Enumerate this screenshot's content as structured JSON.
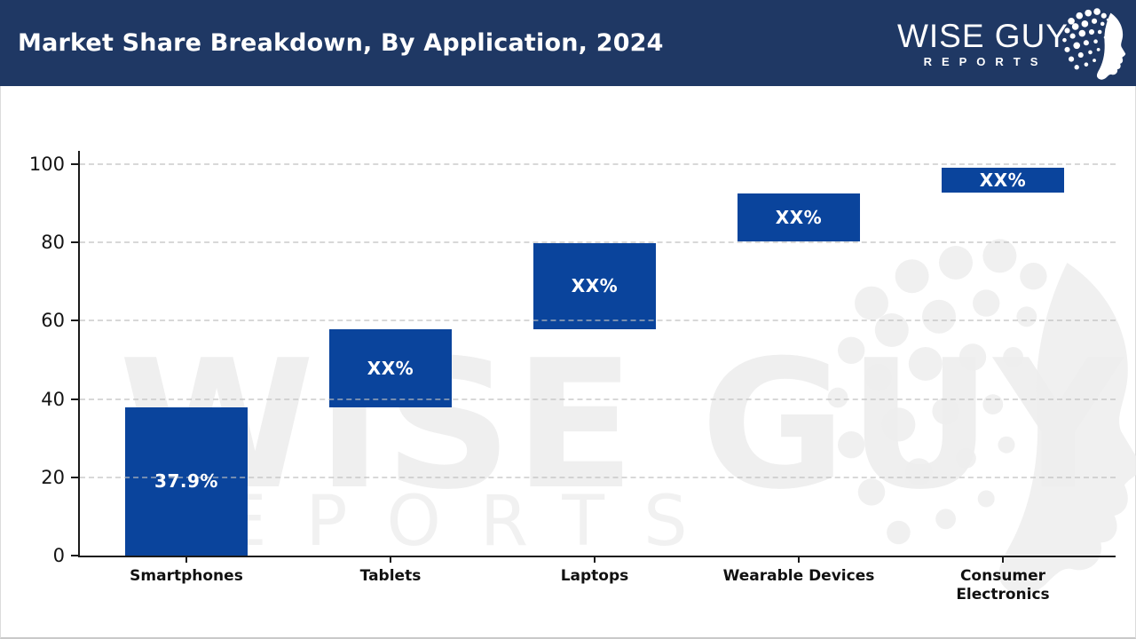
{
  "header": {
    "title": "Market Share Breakdown, By Application, 2024",
    "logo": {
      "line1": "WISE GUY",
      "line2": "REPORTS"
    }
  },
  "watermark": {
    "line1": "WISE GUY",
    "line2": "REPORTS"
  },
  "chart_data": {
    "type": "bar",
    "subtype": "waterfall",
    "title": "Market Share Breakdown, By Application, 2024",
    "categories": [
      "Smartphones",
      "Tablets",
      "Laptops",
      "Wearable Devices",
      "Consumer Electronics"
    ],
    "series": [
      {
        "name": "Market Share %",
        "segments": [
          {
            "category": "Smartphones",
            "start": 0,
            "end": 37.9,
            "label": "37.9%"
          },
          {
            "category": "Tablets",
            "start": 37.9,
            "end": 57.9,
            "label": "XX%"
          },
          {
            "category": "Laptops",
            "start": 57.9,
            "end": 79.8,
            "label": "XX%"
          },
          {
            "category": "Wearable Devices",
            "start": 80.2,
            "end": 92.5,
            "label": "XX%"
          },
          {
            "category": "Consumer Electronics",
            "start": 92.7,
            "end": 99.2,
            "label": "XX%"
          }
        ]
      }
    ],
    "xlabel": "",
    "ylabel": "",
    "ylim": [
      0,
      103.5
    ],
    "yticks": [
      0,
      20,
      40,
      60,
      80,
      100
    ],
    "grid": "horizontal-dashed-over-bars",
    "legend": "none"
  },
  "colors": {
    "header_bg": "#1f3864",
    "header_text": "#ffffff",
    "bar": "#0a449c",
    "bar_label": "#ffffff",
    "axis": "#1a1a1a",
    "gridline": "#bebebe",
    "watermark": "#efefef"
  }
}
